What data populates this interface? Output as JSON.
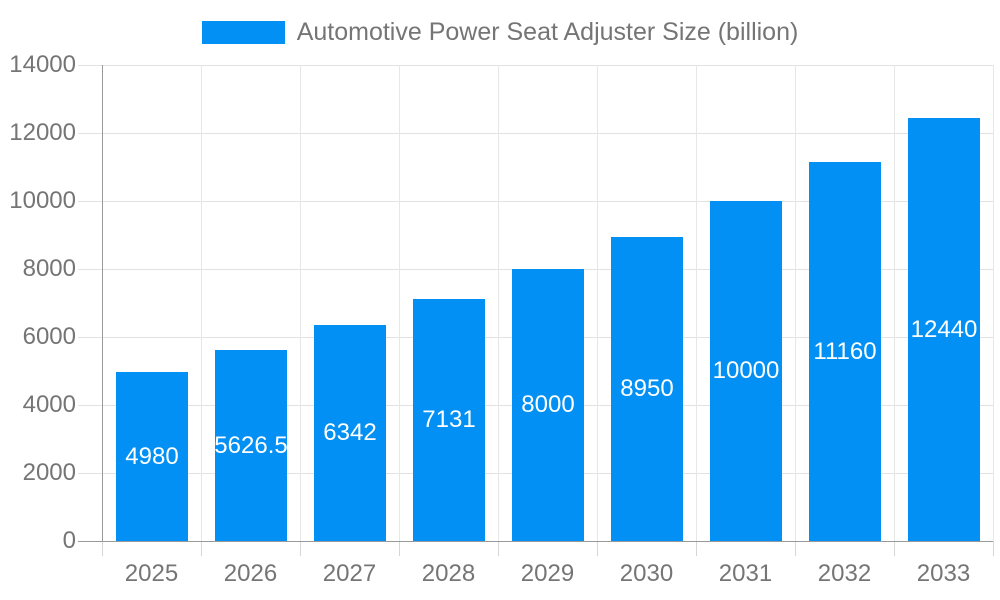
{
  "legend": {
    "label": "Automotive Power Seat Adjuster Size (billion)"
  },
  "chart_data": {
    "type": "bar",
    "title": "Automotive Power Seat Adjuster Size (billion)",
    "categories": [
      "2025",
      "2026",
      "2027",
      "2028",
      "2029",
      "2030",
      "2031",
      "2032",
      "2033"
    ],
    "values": [
      4980,
      5626.5,
      6342,
      7131,
      8000,
      8950,
      10000,
      11160,
      12440
    ],
    "xlabel": "",
    "ylabel": "",
    "ylim": [
      0,
      14000
    ],
    "ytick_step": 2000,
    "yticks": [
      0,
      2000,
      4000,
      6000,
      8000,
      10000,
      12000,
      14000
    ],
    "grid": true,
    "legend_position": "top",
    "value_labels_inside_bars": true,
    "colors": {
      "bar": "#0290f5",
      "axis_line": "#999999",
      "gridline": "#e2e2e2",
      "tick_label": "#757575",
      "title": "#757575",
      "value_label": "#ffffff",
      "background": "#ffffff"
    }
  }
}
